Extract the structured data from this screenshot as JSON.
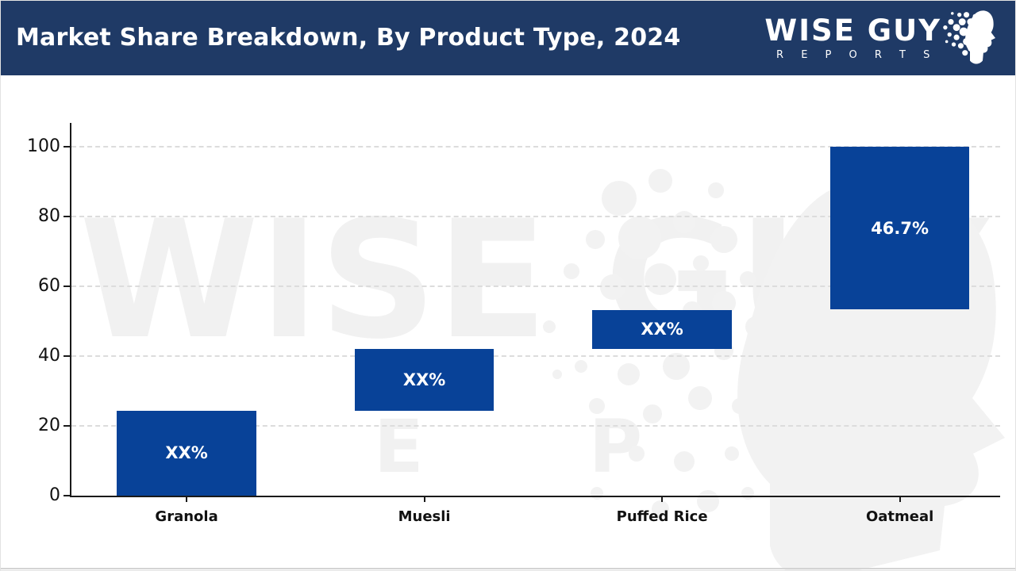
{
  "header": {
    "title": "Market Share Breakdown, By Product Type, 2024",
    "logo": {
      "line1": "WISE GUY",
      "line2": "R E P O R T S",
      "icon": "wiseguy-head-icon"
    }
  },
  "watermark": {
    "line1": "WISE GUY",
    "line2": "R E P O R T S"
  },
  "colors": {
    "header_bg": "#1f3a66",
    "bar_fill": "#084298",
    "bar_label": "#ffffff",
    "gridline": "#dcdcdc",
    "axis": "#1a1a1a",
    "watermark": "#f1f1f1"
  },
  "chart_data": {
    "type": "bar",
    "subtype": "floating-waterfall",
    "title": "Market Share Breakdown, By Product Type, 2024",
    "xlabel": "",
    "ylabel": "",
    "categories": [
      "Granola",
      "Muesli",
      "Puffed Rice",
      "Oatmeal"
    ],
    "segments": [
      {
        "category": "Granola",
        "start": 0,
        "end": 24.4,
        "label": "XX%"
      },
      {
        "category": "Muesli",
        "start": 24.4,
        "end": 42.1,
        "label": "XX%"
      },
      {
        "category": "Puffed Rice",
        "start": 42.1,
        "end": 53.3,
        "label": "XX%"
      },
      {
        "category": "Oatmeal",
        "start": 53.3,
        "end": 100,
        "label": "46.7%"
      }
    ],
    "yticks": [
      0,
      20,
      40,
      60,
      80,
      100
    ],
    "ylim": [
      0,
      106.8
    ],
    "grid": "horizontal-dashed",
    "legend": "none"
  }
}
